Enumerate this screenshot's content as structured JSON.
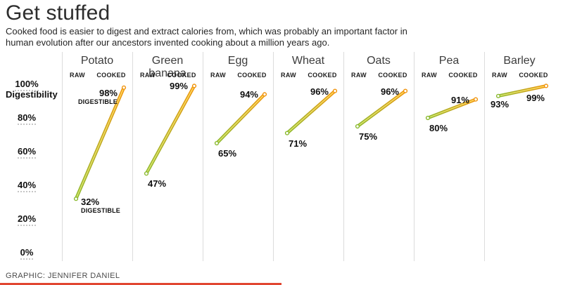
{
  "page": {
    "title": "Get stuffed",
    "subtitle": "Cooked food is easier to digest and extract calories from, which was probably an important factor in human evolution after our ancestors invented cooking about a million years ago.",
    "credit": "GRAPHIC: JENNIFER DANIEL"
  },
  "chart_data": {
    "type": "slope",
    "title": "Get stuffed",
    "ylabel": "Digestibility",
    "ylim": [
      0,
      100
    ],
    "grid": false,
    "legend_position": "none",
    "yticks": [
      {
        "pct": 100,
        "label": "100%"
      },
      {
        "pct": 80,
        "label": "80%"
      },
      {
        "pct": 60,
        "label": "60%"
      },
      {
        "pct": 40,
        "label": "40%"
      },
      {
        "pct": 20,
        "label": "20%"
      },
      {
        "pct": 0,
        "label": "0%"
      }
    ],
    "x_categories": [
      "RAW",
      "COOKED"
    ],
    "series": [
      {
        "name": "Potato",
        "raw": 32,
        "cooked": 98,
        "raw_label": "32%",
        "cooked_label": "98%",
        "raw_sublabel": "DIGESTIBLE",
        "cooked_sublabel": "DIGESTIBLE",
        "raw_label_pos": "right",
        "cooked_label_pos": "left"
      },
      {
        "name": "Green banana",
        "raw": 47,
        "cooked": 99,
        "raw_label": "47%",
        "cooked_label": "99%",
        "raw_label_pos": "below",
        "cooked_label_pos": "left"
      },
      {
        "name": "Egg",
        "raw": 65,
        "cooked": 94,
        "raw_label": "65%",
        "cooked_label": "94%",
        "raw_label_pos": "below",
        "cooked_label_pos": "left"
      },
      {
        "name": "Wheat",
        "raw": 71,
        "cooked": 96,
        "raw_label": "71%",
        "cooked_label": "96%",
        "raw_label_pos": "below",
        "cooked_label_pos": "left"
      },
      {
        "name": "Oats",
        "raw": 75,
        "cooked": 96,
        "raw_label": "75%",
        "cooked_label": "96%",
        "raw_label_pos": "below",
        "cooked_label_pos": "left"
      },
      {
        "name": "Pea",
        "raw": 80,
        "cooked": 91,
        "raw_label": "80%",
        "cooked_label": "91%",
        "raw_label_pos": "below",
        "cooked_label_pos": "left"
      },
      {
        "name": "Barley",
        "raw": 93,
        "cooked": 99,
        "raw_label": "93%",
        "cooked_label": "99%",
        "raw_label_pos": "below-left",
        "cooked_label_pos": "below"
      }
    ],
    "colors": {
      "raw_end": "#8ab92e",
      "cooked_end": "#f0930b",
      "raw_highlight": "#d3e26c",
      "cooked_highlight": "#ffd35a",
      "separator": "#dcdcdc",
      "credit_rule": "#e14631"
    }
  }
}
